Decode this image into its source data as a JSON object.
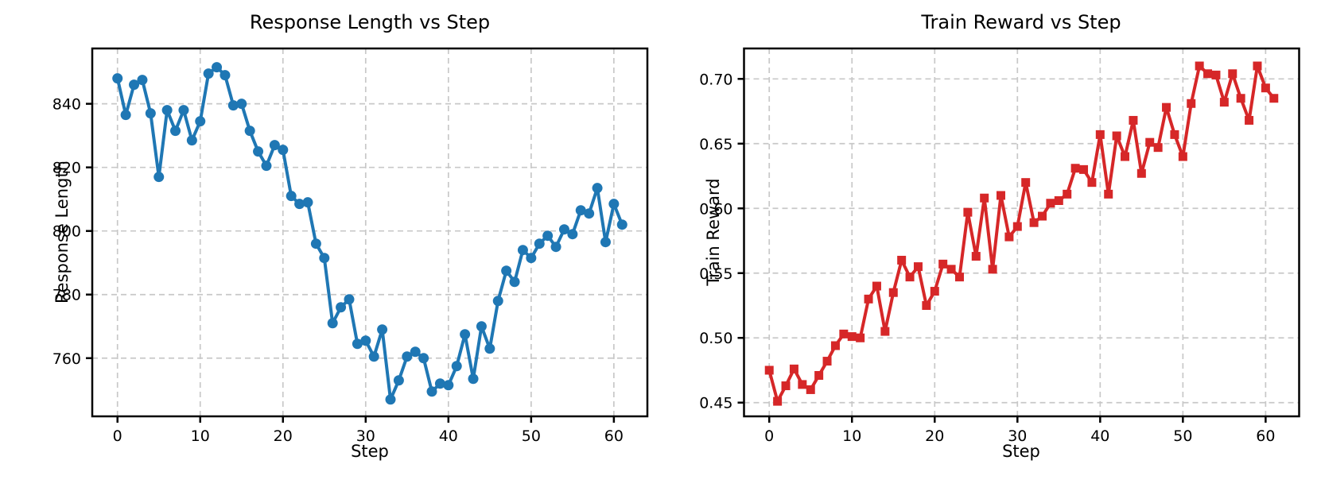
{
  "figure": {
    "background": "#ffffff",
    "grid_color": "#c8c8c8",
    "spine_color": "#000000",
    "text_color": "#000000"
  },
  "chart_data": [
    {
      "type": "line",
      "title": "Response Length vs Step",
      "xlabel": "Step",
      "ylabel": "Response Length",
      "color": "#1f77b4",
      "marker": "circle",
      "grid": true,
      "legend": "none",
      "xlim": [
        -3.05,
        64.05
      ],
      "ylim": [
        741.7,
        857.4
      ],
      "x_tick_values": [
        0,
        10,
        20,
        30,
        40,
        50,
        60
      ],
      "x_tick_labels": [
        "0",
        "10",
        "20",
        "30",
        "40",
        "50",
        "60"
      ],
      "y_tick_values": [
        760,
        780,
        800,
        820,
        840
      ],
      "y_tick_labels": [
        "760",
        "780",
        "800",
        "820",
        "840"
      ],
      "x": [
        0,
        1,
        2,
        3,
        4,
        5,
        6,
        7,
        8,
        9,
        10,
        11,
        12,
        13,
        14,
        15,
        16,
        17,
        18,
        19,
        20,
        21,
        22,
        23,
        24,
        25,
        26,
        27,
        28,
        29,
        30,
        31,
        32,
        33,
        34,
        35,
        36,
        37,
        38,
        39,
        40,
        41,
        42,
        43,
        44,
        45,
        46,
        47,
        48,
        49,
        50,
        51,
        52,
        53,
        54,
        55,
        56,
        57,
        58,
        59,
        60,
        61
      ],
      "y": [
        848,
        836.5,
        846,
        847.5,
        837,
        817,
        838,
        831.5,
        838,
        828.5,
        834.5,
        849.5,
        851.5,
        849,
        839.5,
        840,
        831.5,
        825,
        820.5,
        827,
        825.5,
        811,
        808.5,
        809,
        796,
        791.5,
        771,
        776,
        778.5,
        764.5,
        765.5,
        760.5,
        769,
        747,
        753,
        760.5,
        762,
        760,
        749.5,
        752,
        751.5,
        757.5,
        767.5,
        753.5,
        770,
        763,
        778,
        787.5,
        784,
        794,
        791.5,
        796,
        798.5,
        795,
        800.5,
        799,
        806.5,
        805.5,
        813.5,
        796.5,
        808.5,
        802
      ]
    },
    {
      "type": "line",
      "title": "Train Reward vs Step",
      "xlabel": "Step",
      "ylabel": "Train Reward",
      "color": "#d62728",
      "marker": "square",
      "grid": true,
      "legend": "none",
      "xlim": [
        -3.05,
        64.05
      ],
      "ylim": [
        0.4394,
        0.7235
      ],
      "x_tick_values": [
        0,
        10,
        20,
        30,
        40,
        50,
        60
      ],
      "x_tick_labels": [
        "0",
        "10",
        "20",
        "30",
        "40",
        "50",
        "60"
      ],
      "y_tick_values": [
        0.45,
        0.5,
        0.55,
        0.6,
        0.65,
        0.7
      ],
      "y_tick_labels": [
        "0.45",
        "0.50",
        "0.55",
        "0.60",
        "0.65",
        "0.70"
      ],
      "x": [
        0,
        1,
        2,
        3,
        4,
        5,
        6,
        7,
        8,
        9,
        10,
        11,
        12,
        13,
        14,
        15,
        16,
        17,
        18,
        19,
        20,
        21,
        22,
        23,
        24,
        25,
        26,
        27,
        28,
        29,
        30,
        31,
        32,
        33,
        34,
        35,
        36,
        37,
        38,
        39,
        40,
        41,
        42,
        43,
        44,
        45,
        46,
        47,
        48,
        49,
        50,
        51,
        52,
        53,
        54,
        55,
        56,
        57,
        58,
        59,
        60,
        61
      ],
      "y": [
        0.475,
        0.451,
        0.463,
        0.476,
        0.464,
        0.46,
        0.471,
        0.482,
        0.494,
        0.503,
        0.501,
        0.5,
        0.53,
        0.54,
        0.505,
        0.535,
        0.56,
        0.547,
        0.555,
        0.525,
        0.536,
        0.557,
        0.553,
        0.547,
        0.597,
        0.563,
        0.608,
        0.553,
        0.61,
        0.578,
        0.586,
        0.62,
        0.589,
        0.594,
        0.604,
        0.606,
        0.611,
        0.631,
        0.63,
        0.62,
        0.657,
        0.611,
        0.656,
        0.64,
        0.668,
        0.627,
        0.651,
        0.647,
        0.678,
        0.657,
        0.64,
        0.681,
        0.71,
        0.704,
        0.703,
        0.682,
        0.704,
        0.685,
        0.668,
        0.71,
        0.693,
        0.685
      ]
    }
  ]
}
